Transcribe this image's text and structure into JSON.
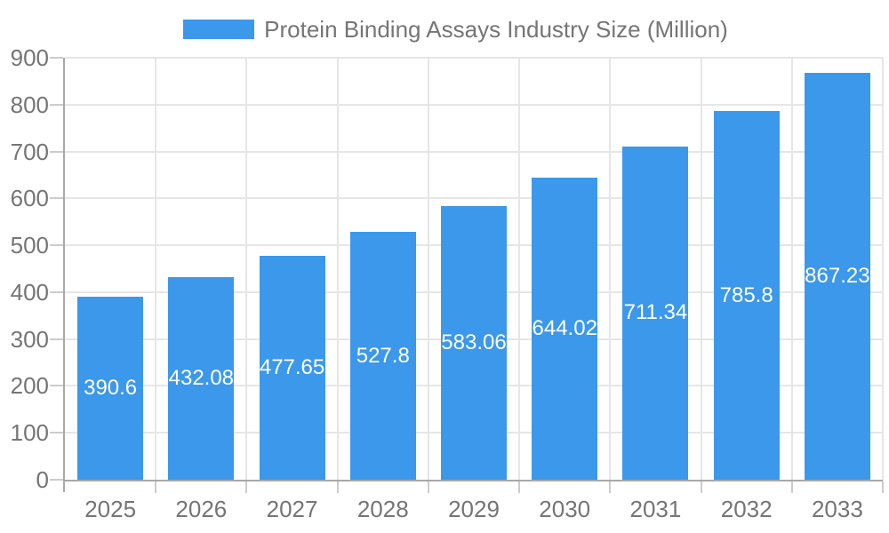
{
  "legend": {
    "label": "Protein Binding Assays Industry Size (Million)",
    "swatch_color": "#3B98EB"
  },
  "chart_data": {
    "type": "bar",
    "title": "Protein Binding Assays Industry Size (Million)",
    "categories": [
      "2025",
      "2026",
      "2027",
      "2028",
      "2029",
      "2030",
      "2031",
      "2032",
      "2033"
    ],
    "values": [
      390.6,
      432.08,
      477.65,
      527.8,
      583.06,
      644.02,
      711.34,
      785.8,
      867.23
    ],
    "value_labels": [
      "390.6",
      "432.08",
      "477.65",
      "527.8",
      "583.06",
      "644.02",
      "711.34",
      "785.8",
      "867.23"
    ],
    "xlabel": "",
    "ylabel": "",
    "ylim": [
      0,
      900
    ],
    "yticks": [
      0,
      100,
      200,
      300,
      400,
      500,
      600,
      700,
      800,
      900
    ],
    "grid": true,
    "legend_position": "top",
    "colors": {
      "bar": "#3B98EB",
      "value_text": "#ffffff",
      "axis_text": "#757575",
      "grid": "#e6e6e6",
      "axis_line": "#a8a8a8",
      "tick": "#cccccc"
    }
  }
}
